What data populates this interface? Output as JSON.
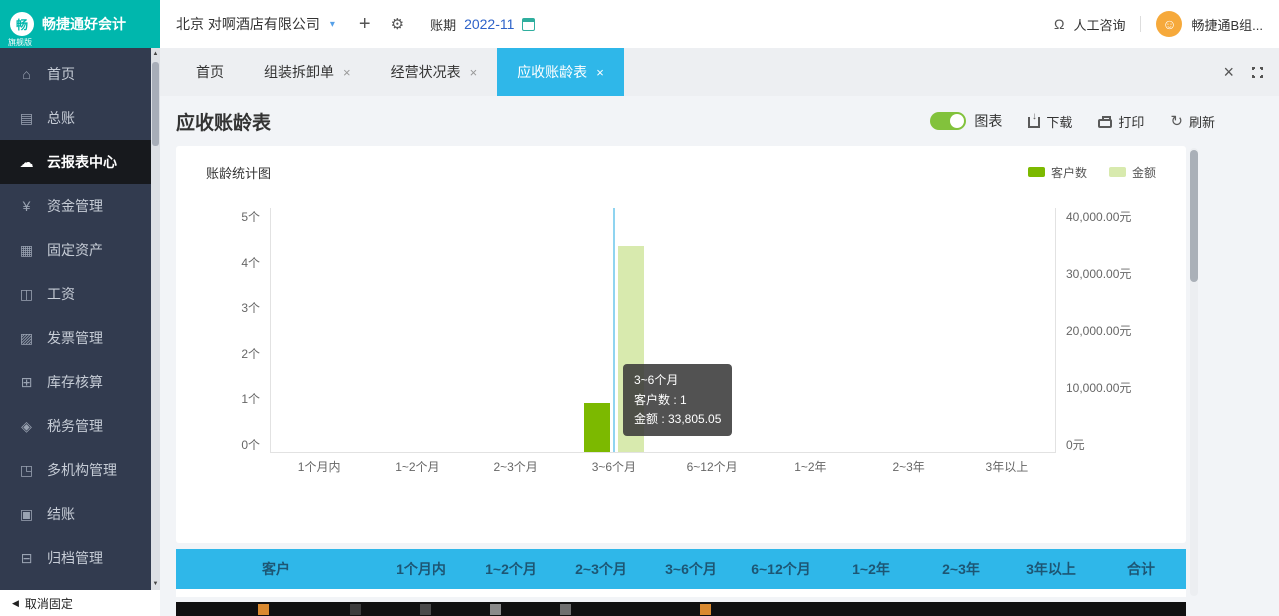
{
  "brand": {
    "name": "畅捷通好会计",
    "edition": "旗舰版",
    "mark": "畅"
  },
  "topbar": {
    "company": "北京 对啊酒店有限公司",
    "period_label": "账期",
    "period_value": "2022-11",
    "support_label": "人工咨询",
    "user_name": "畅捷通B组..."
  },
  "icons": {
    "chevron_down": "▾",
    "plus": "+",
    "gear": "⚙",
    "headset": "Ω",
    "avatar_face": "☺",
    "close": "×",
    "refresh": "↻",
    "unpin_arrow": "◀",
    "scroll_up": "▲",
    "scroll_down": "▼"
  },
  "sidebar": {
    "items": [
      {
        "label": "首页",
        "icon": "⌂"
      },
      {
        "label": "总账",
        "icon": "▤"
      },
      {
        "label": "云报表中心",
        "icon": "☁"
      },
      {
        "label": "资金管理",
        "icon": "¥"
      },
      {
        "label": "固定资产",
        "icon": "▦"
      },
      {
        "label": "工资",
        "icon": "◫"
      },
      {
        "label": "发票管理",
        "icon": "▨"
      },
      {
        "label": "库存核算",
        "icon": "⊞"
      },
      {
        "label": "税务管理",
        "icon": "◈"
      },
      {
        "label": "多机构管理",
        "icon": "◳"
      },
      {
        "label": "结账",
        "icon": "▣"
      },
      {
        "label": "归档管理",
        "icon": "⊟"
      }
    ],
    "unpin_label": "取消固定"
  },
  "tabs": [
    {
      "label": "首页"
    },
    {
      "label": "组装拆卸单",
      "close": "×"
    },
    {
      "label": "经营状况表",
      "close": "×"
    },
    {
      "label": "应收账龄表",
      "close": "×"
    }
  ],
  "page": {
    "title": "应收账龄表",
    "chart_toggle_label": "图表",
    "download_label": "下载",
    "print_label": "打印",
    "refresh_label": "刷新"
  },
  "chart_data": {
    "type": "bar",
    "title": "账龄统计图",
    "categories": [
      "1个月内",
      "1~2个月",
      "2~3个月",
      "3~6个月",
      "6~12个月",
      "1~2年",
      "2~3年",
      "3年以上"
    ],
    "series": [
      {
        "name": "客户数",
        "color": "#7cb900",
        "axis": "left",
        "values": [
          0,
          0,
          0,
          1,
          0,
          0,
          0,
          0
        ]
      },
      {
        "name": "金额",
        "color": "#d8eaae",
        "axis": "right",
        "values": [
          0,
          0,
          0,
          33805.05,
          0,
          0,
          0,
          0
        ]
      }
    ],
    "left_axis": {
      "ticks": [
        "5个",
        "4个",
        "3个",
        "2个",
        "1个",
        "0个"
      ],
      "max": 5
    },
    "right_axis": {
      "ticks": [
        "40,000.00元",
        "30,000.00元",
        "20,000.00元",
        "10,000.00元",
        "0元"
      ],
      "max": 40000
    },
    "highlight_category": "3~6个月",
    "tooltip": {
      "category": "3~6个月",
      "lines": [
        "客户数 : 1",
        "金额 : 33,805.05"
      ]
    },
    "legend_position": "top-right",
    "grid": false
  },
  "table": {
    "headers": [
      "客户",
      "1个月内",
      "1~2个月",
      "2~3个月",
      "3~6个月",
      "6~12个月",
      "1~2年",
      "2~3年",
      "3年以上",
      "合计"
    ]
  },
  "colors": {
    "accent": "#2fb7e9",
    "toggle_on": "#82c23c",
    "sidebar_bg": "#323b4f",
    "logo_bg": "#00b7ad",
    "customer_bar": "#7cb900",
    "amount_bar": "#d8eaae"
  }
}
